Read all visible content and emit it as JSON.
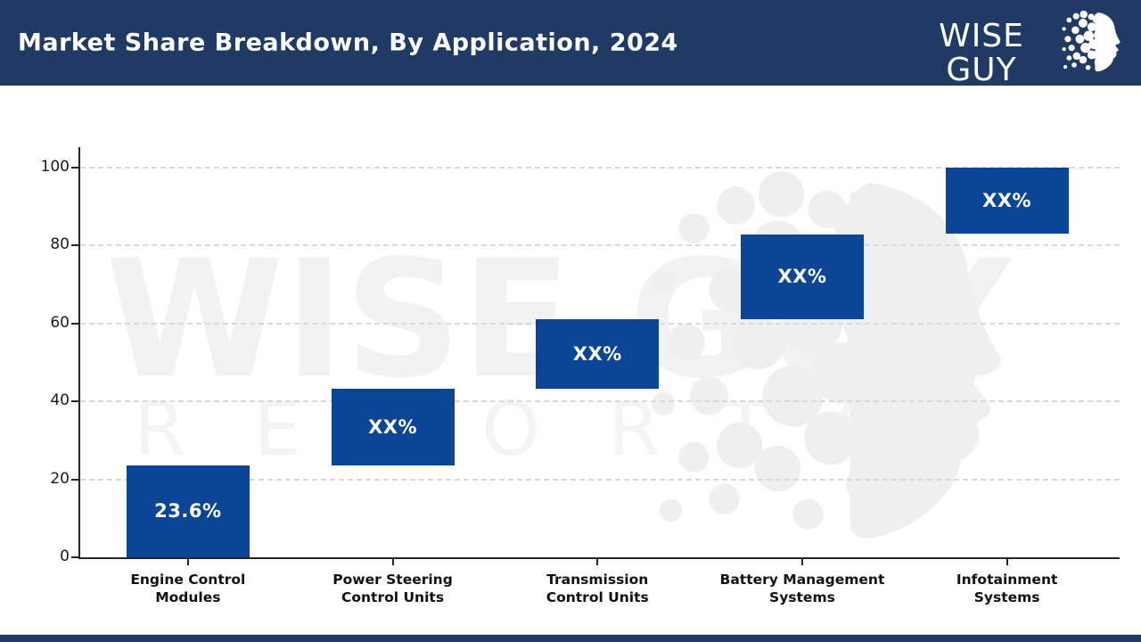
{
  "header": {
    "title": "Market Share Breakdown, By Application, 2024",
    "brand": {
      "line1": "WISE GUY",
      "line2": "REPORTS"
    }
  },
  "watermark": {
    "line1": "WISE GUY",
    "line2": "REPORTS"
  },
  "colors": {
    "header_bg": "#203a66",
    "bar_fill": "#0b4598",
    "bar_label": "#ffffff",
    "gridline": "#d9d9d9",
    "axis": "#262626",
    "watermark": "#f2f2f2"
  },
  "chart_data": {
    "type": "bar",
    "subtype": "waterfall",
    "title": "Market Share Breakdown, By Application, 2024",
    "xlabel": "",
    "ylabel": "",
    "ylim": [
      0,
      100
    ],
    "yticks": [
      0,
      20,
      40,
      60,
      80,
      100
    ],
    "grid": "horizontal-dashed",
    "legend": "none",
    "categories": [
      {
        "line1": "Engine Control",
        "line2": "Modules"
      },
      {
        "line1": "Power Steering",
        "line2": "Control Units"
      },
      {
        "line1": "Transmission",
        "line2": "Control Units"
      },
      {
        "line1": "Battery Management",
        "line2": "Systems"
      },
      {
        "line1": "Infotainment",
        "line2": "Systems"
      }
    ],
    "segments": [
      {
        "start": 0,
        "end": 23.6,
        "label": "23.6%"
      },
      {
        "start": 23.6,
        "end": 43.2,
        "label": "XX%"
      },
      {
        "start": 43.2,
        "end": 61.0,
        "label": "XX%"
      },
      {
        "start": 61.1,
        "end": 82.8,
        "label": "XX%"
      },
      {
        "start": 82.9,
        "end": 100,
        "label": "XX%"
      }
    ]
  }
}
